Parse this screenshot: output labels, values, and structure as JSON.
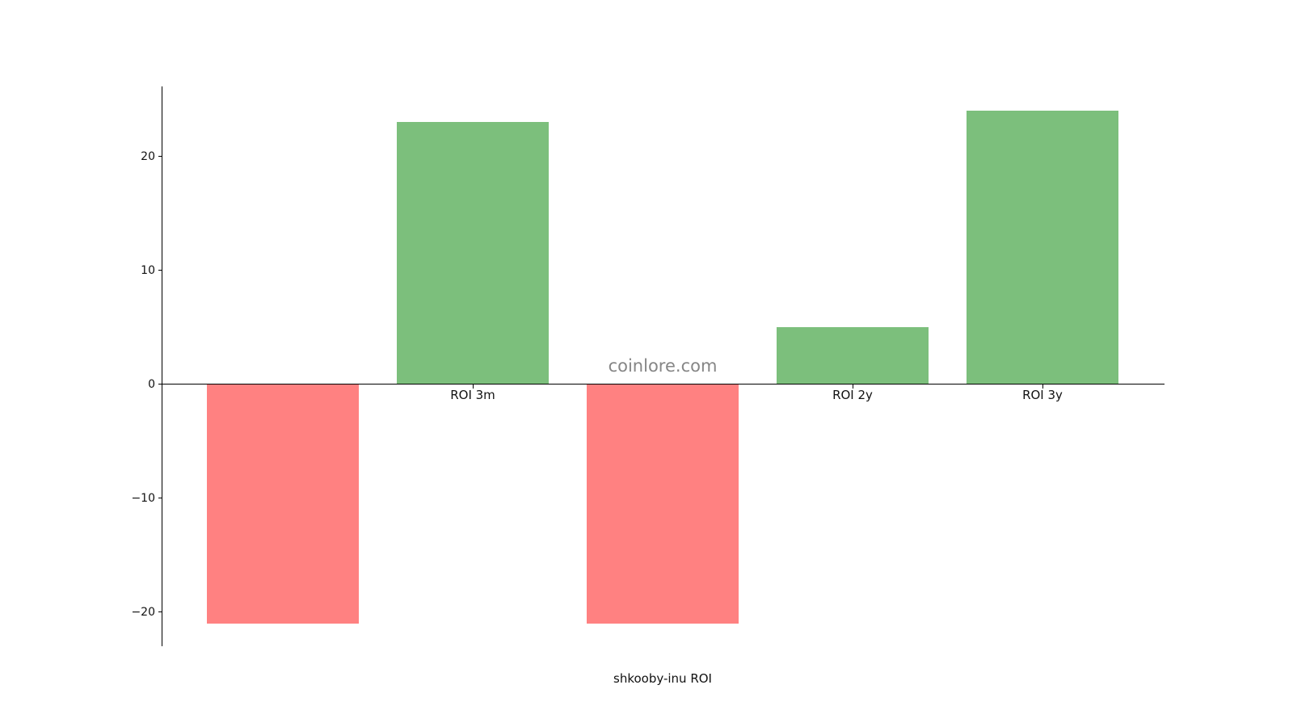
{
  "watermark": {
    "text": "coinlore.com",
    "color": "#868686"
  },
  "chart_data": {
    "type": "bar",
    "title": "",
    "xlabel": "shkooby-inu ROI",
    "ylabel": "",
    "categories": [
      "",
      "ROI 3m",
      "",
      "ROI 2y",
      "ROI 3y"
    ],
    "values": [
      -21,
      23,
      -21,
      5,
      24
    ],
    "bar_colors": [
      "#ff8181",
      "#7cbf7c",
      "#ff8181",
      "#7cbf7c",
      "#7cbf7c"
    ],
    "positive_color": "#7cbf7c",
    "negative_color": "#ff8181",
    "axis_color": "#000000",
    "text_color": "#111111",
    "yticks": [
      20,
      10,
      0,
      -10,
      -20
    ],
    "ytick_labels": [
      "20",
      "10",
      "0",
      "−10",
      "−20"
    ],
    "ylim": [
      -23.25,
      26.25
    ],
    "grid": false,
    "legend": "none"
  }
}
